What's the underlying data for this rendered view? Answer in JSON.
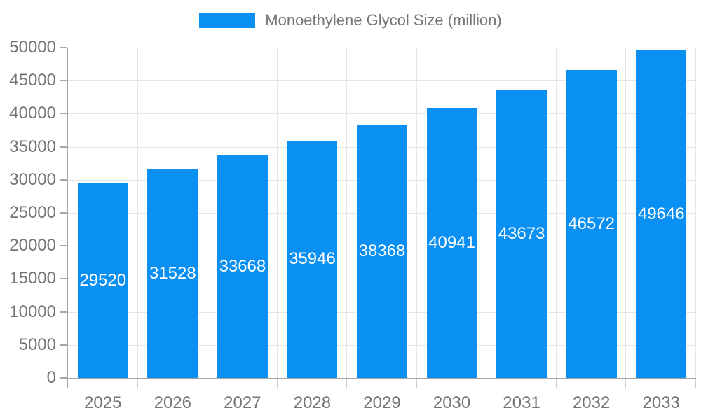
{
  "colors": {
    "bar": "#0a8ff2",
    "axis": "#a6a6a6",
    "grid": "#e6e6e6",
    "boundary_tick": "#cccccc",
    "tick_label": "#757575",
    "bar_label": "#ffffff",
    "background": "#ffffff"
  },
  "legend": {
    "position": "top",
    "items": [
      {
        "label": "Monoethylene Glycol Size (million)",
        "swatch_color": "#0a8ff2"
      }
    ]
  },
  "chart_data": {
    "type": "bar",
    "title": "Monoethylene Glycol Size (million)",
    "series_name": "Monoethylene Glycol Size (million)",
    "categories": [
      "2025",
      "2026",
      "2027",
      "2028",
      "2029",
      "2030",
      "2031",
      "2032",
      "2033"
    ],
    "values": [
      29520,
      31528,
      33668,
      35946,
      38368,
      40941,
      43673,
      46572,
      49646
    ],
    "xlabel": "",
    "ylabel": "",
    "ylim": [
      0,
      50000
    ],
    "ytick_step": 5000,
    "ytick_labels": [
      "0",
      "5000",
      "10000",
      "15000",
      "20000",
      "25000",
      "30000",
      "35000",
      "40000",
      "45000",
      "50000"
    ],
    "grid": true,
    "legend_position": "top",
    "bar_value_labels": true,
    "bar_label_position": "center"
  }
}
